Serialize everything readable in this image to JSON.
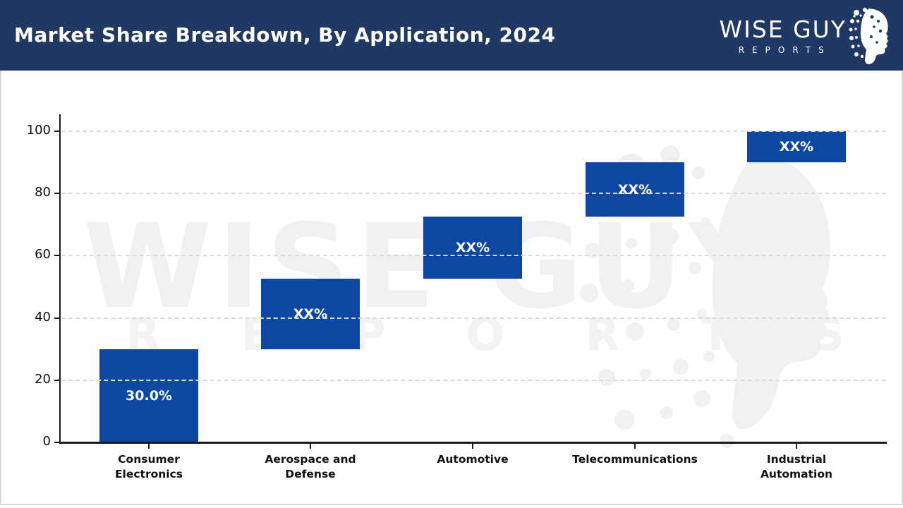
{
  "header": {
    "title": "Market Share Breakdown, By Application, 2024",
    "logo": {
      "line1": "WISE GUY",
      "line2": "REPORTS"
    }
  },
  "watermark": {
    "line1": "WISE GUY",
    "line2": "R E P O R T S"
  },
  "colors": {
    "header_bg": "#1f3864",
    "bar": "#0d47a1",
    "bar_label": "#ffffff",
    "gridline": "#dcdcdc",
    "axis": "#1c1c1c",
    "watermark": "#f1f1f1"
  },
  "chart_data": {
    "type": "bar",
    "subtype": "waterfall",
    "title": "Market Share Breakdown, By Application, 2024",
    "xlabel": "",
    "ylabel": "",
    "categories": [
      "Consumer Electronics",
      "Aerospace and Defense",
      "Automotive",
      "Telecommunications",
      "Industrial Automation"
    ],
    "category_lines": [
      [
        "Consumer",
        "Electronics"
      ],
      [
        "Aerospace and",
        "Defense"
      ],
      [
        "Automotive"
      ],
      [
        "Telecommunications"
      ],
      [
        "Industrial",
        "Automation"
      ]
    ],
    "bars": [
      {
        "category": "Consumer Electronics",
        "start": 0,
        "end": 30,
        "value_pct": 30,
        "label": "30.0%"
      },
      {
        "category": "Aerospace and Defense",
        "start": 30,
        "end": 52.5,
        "value_pct": 22.5,
        "label": "XX%"
      },
      {
        "category": "Automotive",
        "start": 52.5,
        "end": 72.5,
        "value_pct": 20,
        "label": "XX%"
      },
      {
        "category": "Telecommunications",
        "start": 72.5,
        "end": 90,
        "value_pct": 17.5,
        "label": "XX%"
      },
      {
        "category": "Industrial Automation",
        "start": 90,
        "end": 100,
        "value_pct": 10,
        "label": "XX%"
      }
    ],
    "yticks": [
      0,
      20,
      40,
      60,
      80,
      100
    ],
    "ylim": [
      0,
      105
    ],
    "grid": "horizontal dashed, drawn over bars",
    "legend": "none",
    "bar_color": "#0d47a1"
  }
}
